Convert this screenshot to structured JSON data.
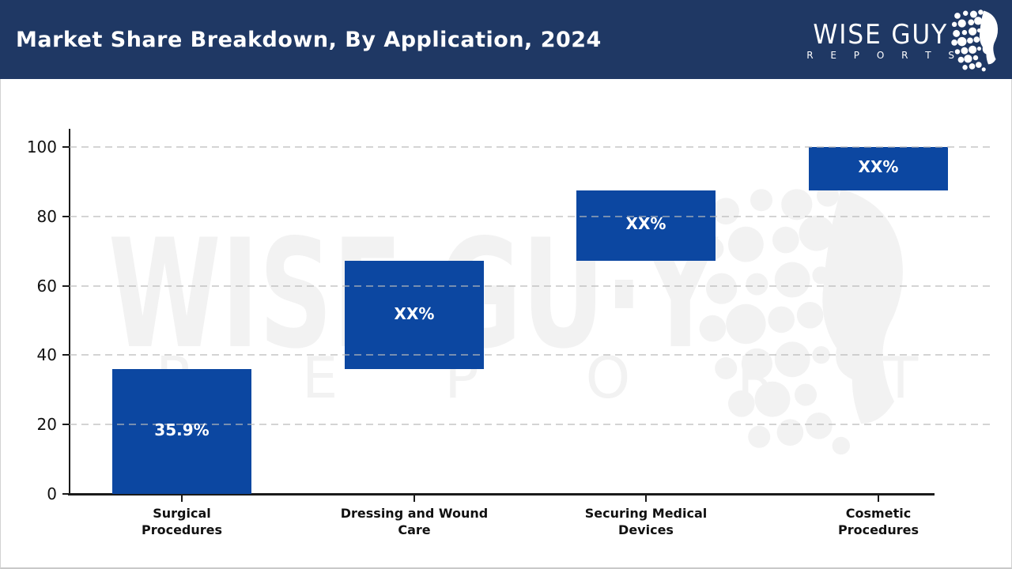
{
  "header": {
    "title": "Market Share Breakdown, By Application, 2024",
    "bg_color": "#1f3864",
    "logo_line1": "WISE GUY",
    "logo_line2": "R E P O R T S"
  },
  "watermark": {
    "line1": "WISE GU·Y",
    "line2": "R E P O R T S"
  },
  "chart_data": {
    "type": "bar",
    "subtype": "waterfall-stacked-share",
    "title": "Market Share Breakdown, By Application, 2024",
    "categories": [
      [
        "Surgical",
        "Procedures"
      ],
      [
        "Dressing and Wound",
        "Care"
      ],
      [
        "Securing Medical",
        "Devices"
      ],
      [
        "Cosmetic",
        "Procedures"
      ]
    ],
    "series": [
      {
        "name": "Surgical Procedures",
        "start": 0,
        "end": 35.9,
        "value": 35.9,
        "label": "35.9%"
      },
      {
        "name": "Dressing and Wound Care",
        "start": 35.9,
        "end": 67.2,
        "value": 31.3,
        "label": "XX%"
      },
      {
        "name": "Securing Medical Devices",
        "start": 67.2,
        "end": 87.5,
        "value": 20.3,
        "label": "XX%"
      },
      {
        "name": "Cosmetic Procedures",
        "start": 87.5,
        "end": 100,
        "value": 12.5,
        "label": "XX%"
      }
    ],
    "ylim": [
      0,
      100
    ],
    "yticks": [
      0,
      20,
      40,
      60,
      80,
      100
    ],
    "xlabel": "",
    "ylabel": "",
    "legend": "none",
    "grid": "horizontal-dashed-over-bars",
    "bar_color": "#0c47a1",
    "bar_label_color": "#ffffff"
  }
}
